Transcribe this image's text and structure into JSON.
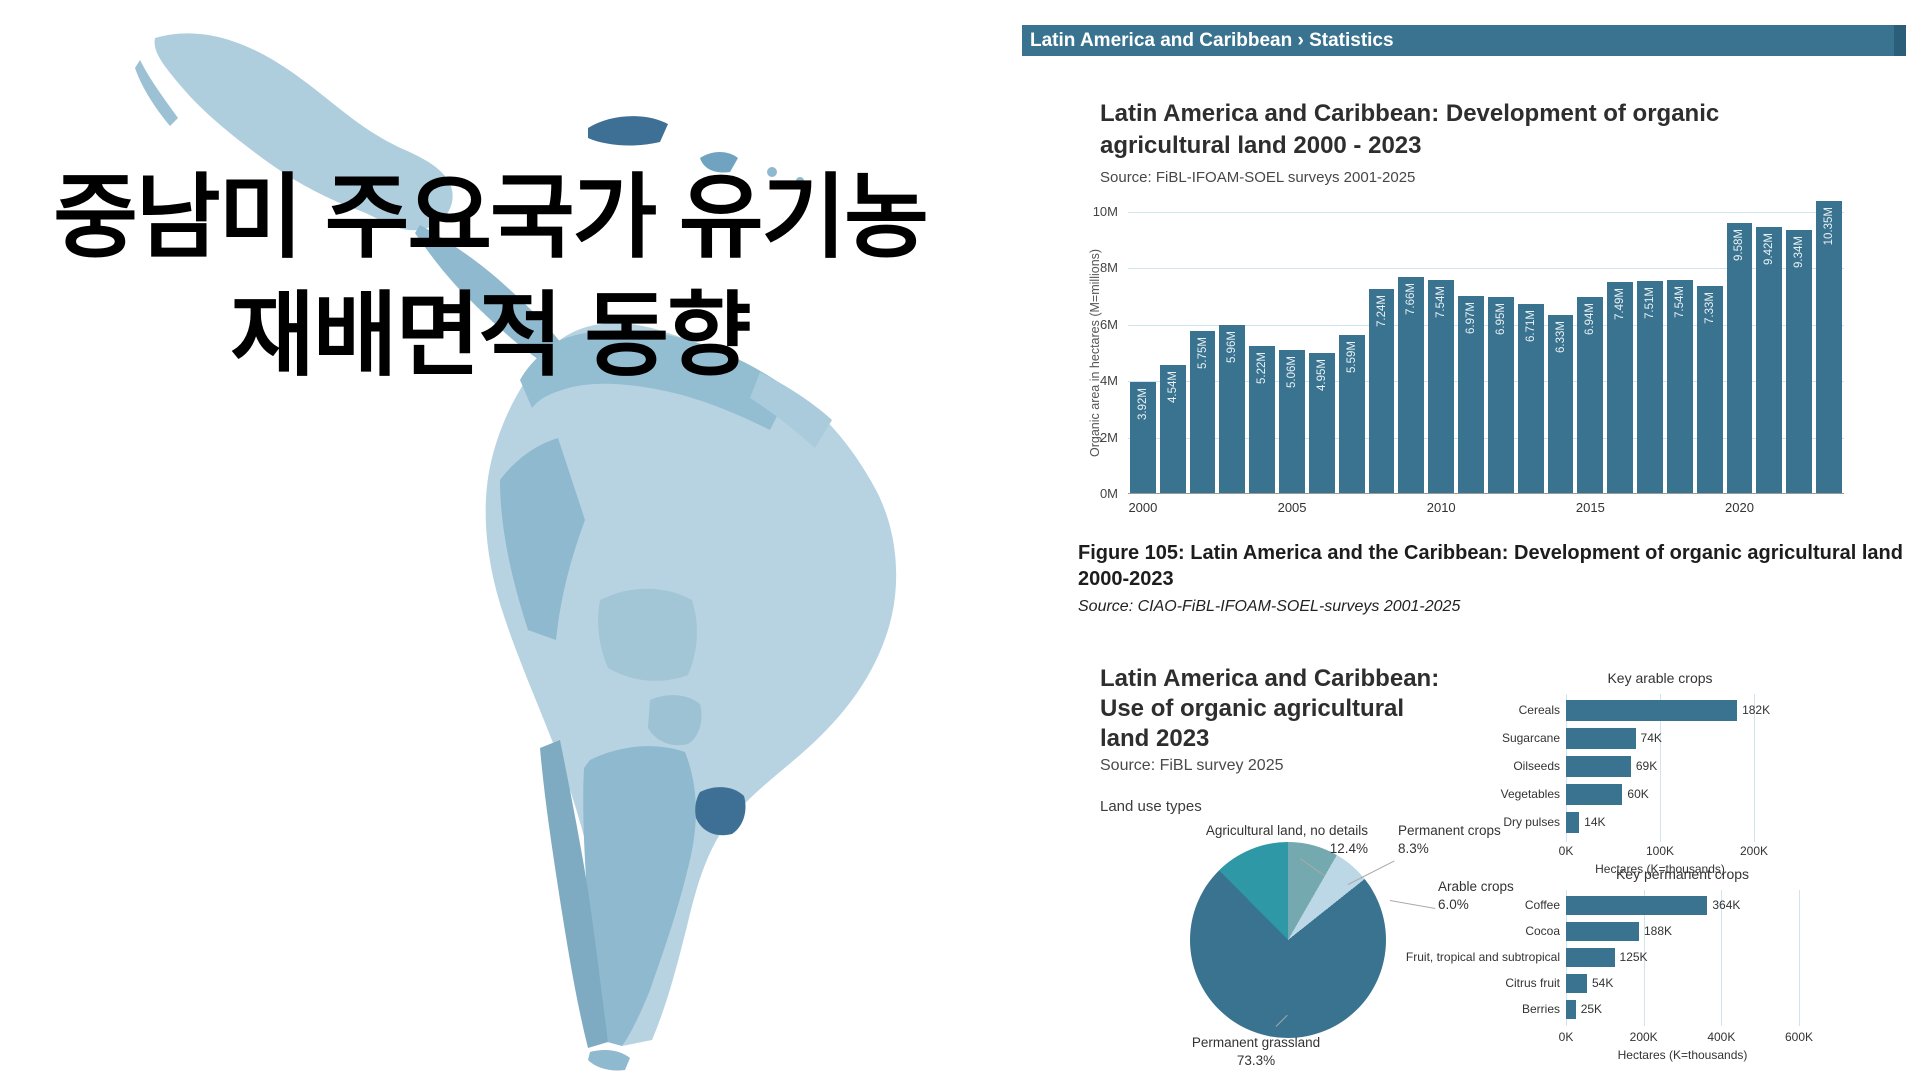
{
  "slide": {
    "title_line1": "중남미 주요국가 유기농",
    "title_line2": "재배면적 동향"
  },
  "header": {
    "breadcrumb": "Latin America and Caribbean › Statistics"
  },
  "development": {
    "title": "Latin America and Caribbean: Development of organic agricultural land 2000 - 2023",
    "source": "Source: FiBL-IFOAM-SOEL surveys 2001-2025"
  },
  "figure_caption": {
    "text": "Figure 105: Latin America and the Caribbean: Development of organic agricultural land 2000-2023",
    "source": "Source: CIAO-FiBL-IFOAM-SOEL-surveys 2001-2025"
  },
  "land_use": {
    "title_lines": [
      "Latin America and Caribbean:",
      "Use of organic agricultural",
      "land 2023"
    ],
    "source": "Source: FiBL survey 2025",
    "subtitle": "Land use types"
  },
  "chart_data": [
    {
      "id": "development",
      "type": "bar",
      "title": "Latin America and Caribbean: Development of organic agricultural land 2000 - 2023",
      "ylabel": "Organic area in hectares (M=millions)",
      "categories": [
        2000,
        2001,
        2002,
        2003,
        2004,
        2005,
        2006,
        2007,
        2008,
        2009,
        2010,
        2011,
        2012,
        2013,
        2014,
        2015,
        2016,
        2017,
        2018,
        2019,
        2020,
        2021,
        2022,
        2023
      ],
      "values": [
        3.92,
        4.54,
        5.75,
        5.96,
        5.22,
        5.06,
        4.95,
        5.59,
        7.24,
        7.66,
        7.54,
        6.97,
        6.95,
        6.71,
        6.33,
        6.94,
        7.49,
        7.51,
        7.54,
        7.33,
        9.58,
        9.42,
        9.34,
        10.35
      ],
      "bar_labels": [
        "3.92M",
        "4.54M",
        "5.75M",
        "5.96M",
        "5.22M",
        "5.06M",
        "4.95M",
        "5.59M",
        "7.24M",
        "7.66M",
        "7.54M",
        "6.97M",
        "6.95M",
        "6.71M",
        "6.33M",
        "6.94M",
        "7.49M",
        "7.51M",
        "7.54M",
        "7.33M",
        "9.58M",
        "9.42M",
        "9.34M",
        "10.35M"
      ],
      "ylim": [
        0,
        10
      ],
      "yticks": [
        "0M",
        "2M",
        "4M",
        "6M",
        "8M",
        "10M"
      ],
      "xticks": [
        "2000",
        "2005",
        "2010",
        "2015",
        "2020"
      ],
      "grid": true,
      "bar_color": "#3A7390",
      "legend": "none"
    },
    {
      "id": "land-use-pie",
      "type": "pie",
      "title": "Land use types",
      "slices": [
        {
          "label": "Permanent crops",
          "pct": "8.3%",
          "value": 8.3,
          "color": "#74A9AF"
        },
        {
          "label": "Arable crops",
          "pct": "6.0%",
          "value": 6.0,
          "color": "#BCD8E6"
        },
        {
          "label": "Permanent grassland",
          "pct": "73.3%",
          "value": 73.3,
          "color": "#3A7390"
        },
        {
          "label": "Agricultural land, no details",
          "pct": "12.4%",
          "value": 12.4,
          "color": "#2E98A6"
        }
      ]
    },
    {
      "id": "arable",
      "type": "bar-horizontal",
      "title": "Key arable crops",
      "categories": [
        "Cereals",
        "Sugarcane",
        "Oilseeds",
        "Vegetables",
        "Dry pulses"
      ],
      "values": [
        182,
        74,
        69,
        60,
        14
      ],
      "value_labels": [
        "182K",
        "74K",
        "69K",
        "60K",
        "14K"
      ],
      "xlim": [
        0,
        200
      ],
      "xticks": [
        {
          "label": "0K",
          "value": 0
        },
        {
          "label": "100K",
          "value": 100
        },
        {
          "label": "200K",
          "value": 200
        }
      ],
      "xlabel": "Hectares (K=thousands)",
      "bar_color": "#3A7390"
    },
    {
      "id": "permanent",
      "type": "bar-horizontal",
      "title": "Key permanent crops",
      "categories": [
        "Coffee",
        "Cocoa",
        "Fruit, tropical and subtropical",
        "Citrus fruit",
        "Berries"
      ],
      "values": [
        364,
        188,
        125,
        54,
        25
      ],
      "value_labels": [
        "364K",
        "188K",
        "125K",
        "54K",
        "25K"
      ],
      "xlim": [
        0,
        600
      ],
      "xticks": [
        {
          "label": "0K",
          "value": 0
        },
        {
          "label": "200K",
          "value": 200
        },
        {
          "label": "400K",
          "value": 400
        },
        {
          "label": "600K",
          "value": 600
        }
      ],
      "xlabel": "Hectares (K=thousands)",
      "bar_color": "#3A7390"
    }
  ],
  "colors": {
    "accent_teal": "#3A7390",
    "header_cap": "#2B5E79",
    "pie_bright_teal": "#2E98A6",
    "pie_sage": "#74A9AF",
    "pie_light_blue": "#BCD8E6",
    "gridline": "#CFE4EC",
    "map_light": "#B7D3E1",
    "map_medium": "#93BDD1",
    "map_dark_accent": "#3E7095"
  }
}
